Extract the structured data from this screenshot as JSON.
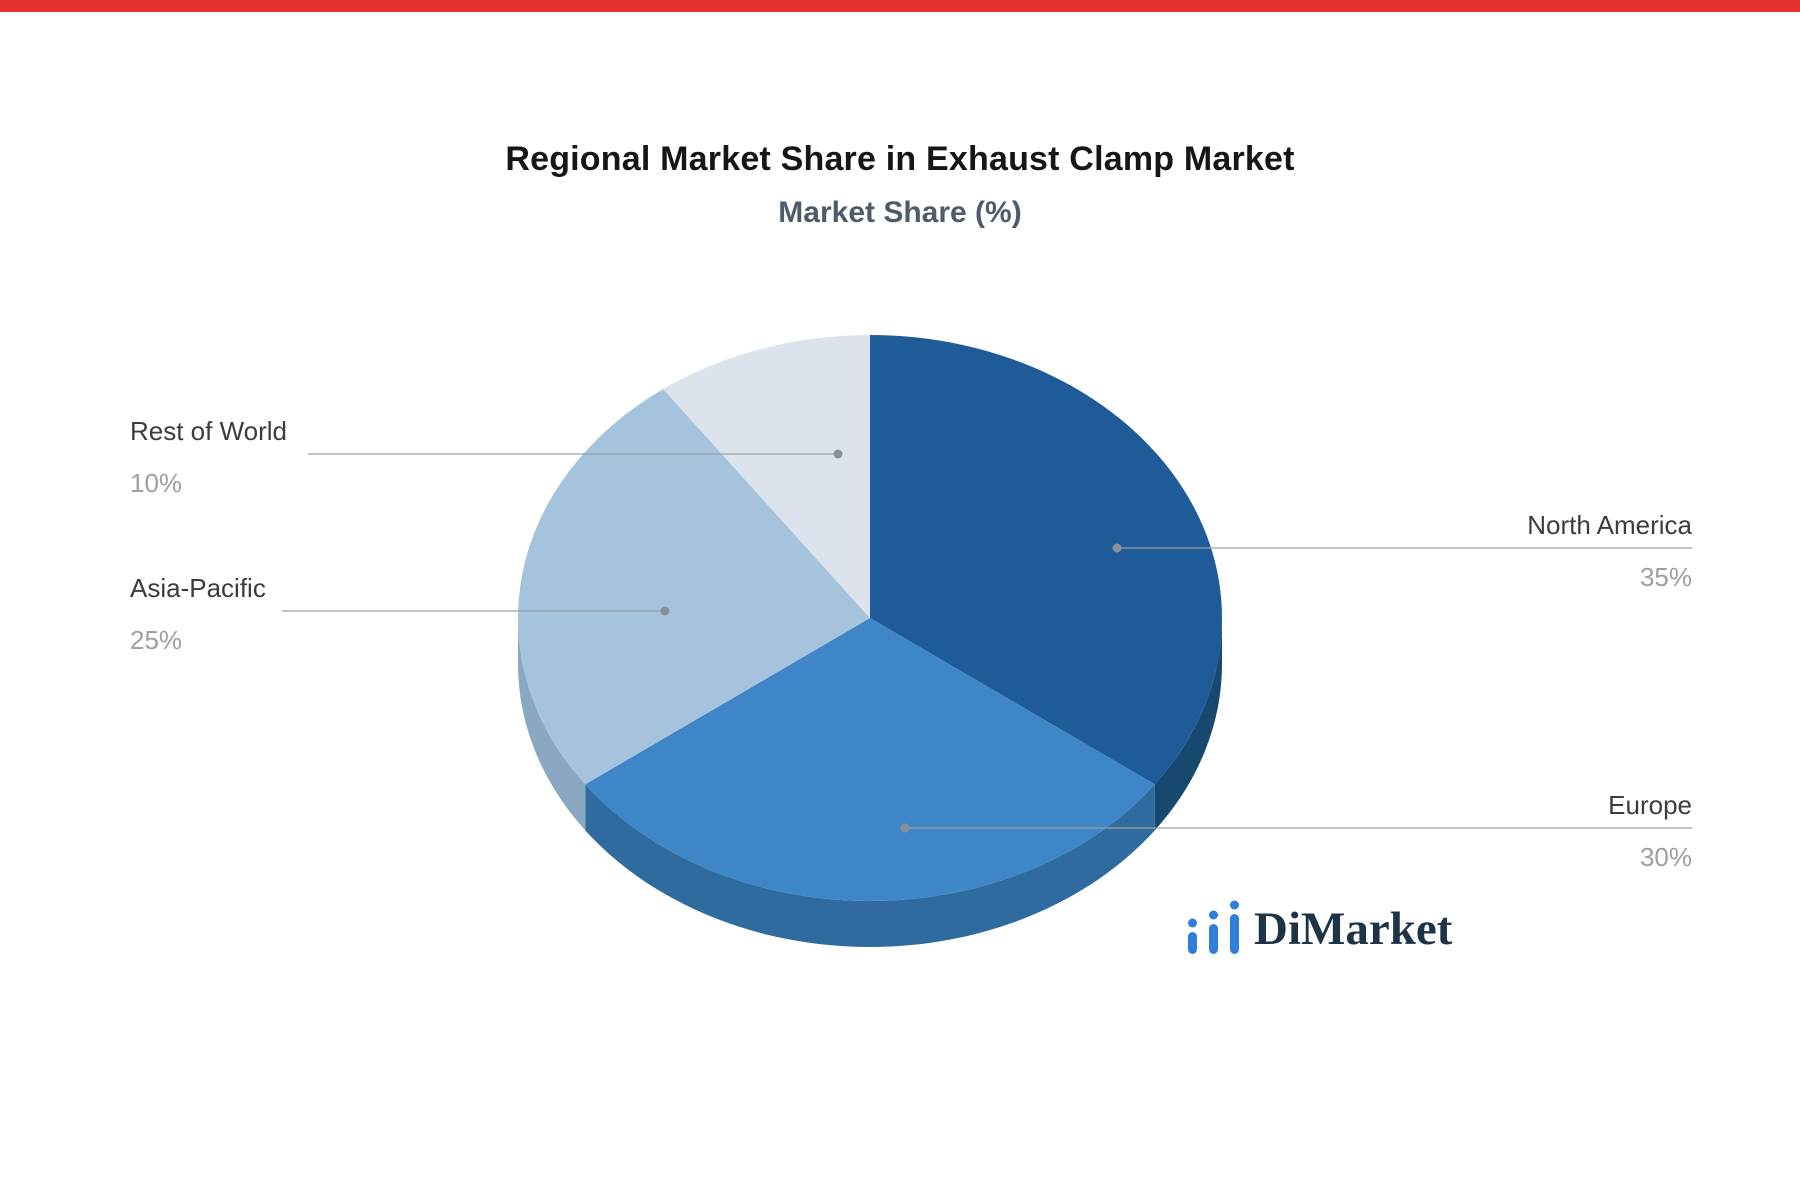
{
  "page": {
    "top_bar_color": "#e5322d",
    "background": "#ffffff"
  },
  "chart_data": {
    "type": "pie",
    "style": "3d",
    "title": "Regional Market Share in Exhaust Clamp Market",
    "subtitle": "Market Share (%)",
    "unit": "%",
    "direction": "clockwise",
    "start_angle_deg": 0,
    "segments": [
      {
        "label": "North America",
        "value": 35,
        "display": "35%",
        "color": "#1f5b99",
        "side_color": "#17496f"
      },
      {
        "label": "Europe",
        "value": 30,
        "display": "30%",
        "color": "#3e86c7",
        "side_color": "#2f6b9e"
      },
      {
        "label": "Asia-Pacific",
        "value": 25,
        "display": "25%",
        "color": "#a6c3de",
        "side_color": "#8aa8c2"
      },
      {
        "label": "Rest of World",
        "value": 10,
        "display": "10%",
        "color": "#dde3ed",
        "side_color": "#c2cbd9"
      }
    ],
    "label_name_color": "#3c3c3c",
    "label_value_color": "#9aa0a6",
    "leader_line_color": "#9aa0a6",
    "legend": "none",
    "grid": "off"
  },
  "logo": {
    "text": "DiMarket",
    "icon": "bar-chart-icon",
    "color": "#1d3347",
    "icon_color": "#2f7fd8"
  }
}
